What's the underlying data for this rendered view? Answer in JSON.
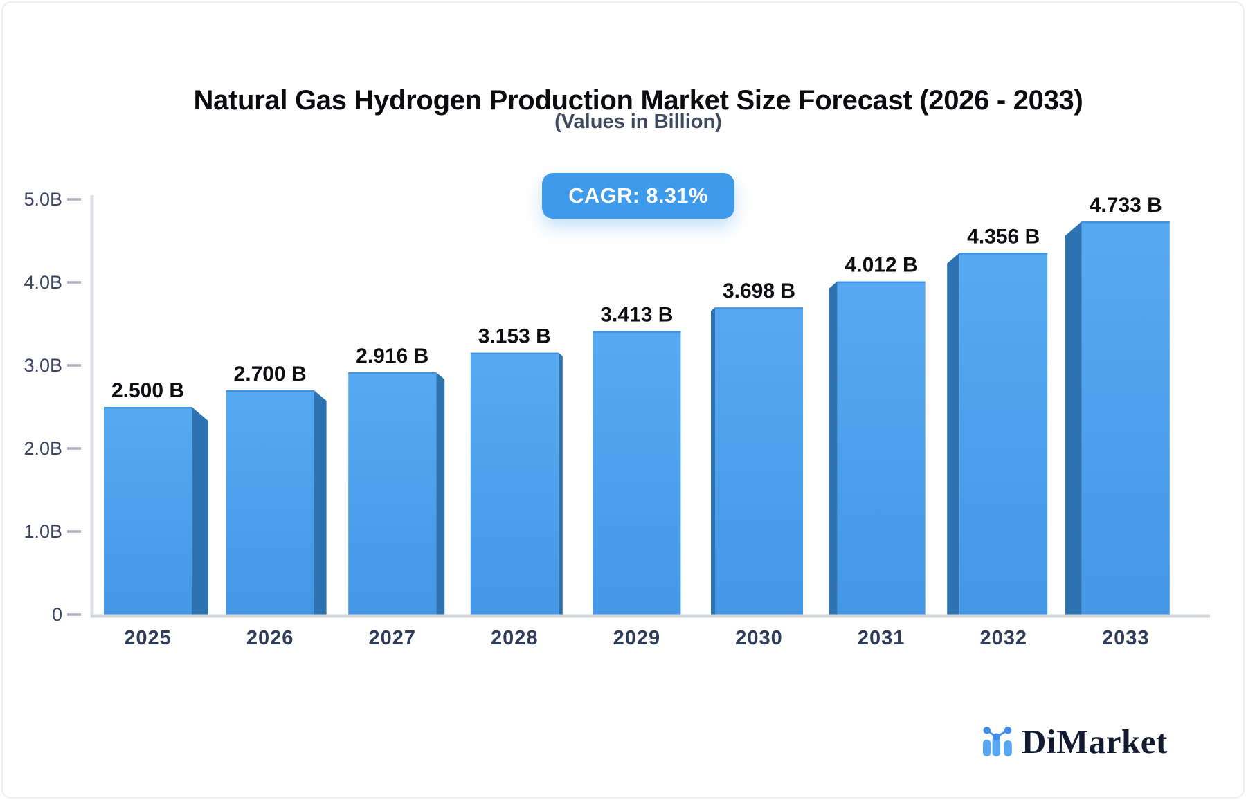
{
  "header": {
    "title": "Natural Gas Hydrogen Production Market Size Forecast (2026 - 2033)",
    "subtitle": "(Values in Billion)"
  },
  "badge": {
    "label": "CAGR: 8.31%"
  },
  "logo": {
    "name": "DiMarket",
    "icon": "mini-bar-line-chart-icon"
  },
  "chart_data": {
    "type": "bar",
    "title": "Natural Gas Hydrogen Production Market Size Forecast (2026 - 2033)",
    "subtitle": "(Values in Billion)",
    "cagr_percent": 8.31,
    "categories": [
      "2025",
      "2026",
      "2027",
      "2028",
      "2029",
      "2030",
      "2031",
      "2032",
      "2033"
    ],
    "values": [
      2.5,
      2.7,
      2.916,
      3.153,
      3.413,
      3.698,
      4.012,
      4.356,
      4.733
    ],
    "value_labels": [
      "2.500 B",
      "2.700 B",
      "2.916 B",
      "3.153 B",
      "3.413 B",
      "3.698 B",
      "4.012 B",
      "4.356 B",
      "4.733 B"
    ],
    "unit": "Billion",
    "xlabel": "",
    "ylabel": "",
    "ylim": [
      0,
      5
    ],
    "yticks": {
      "values": [
        0,
        1,
        2,
        3,
        4,
        5
      ],
      "labels": [
        "0",
        "1.0B",
        "2.0B",
        "3.0B",
        "4.0B",
        "5.0B"
      ]
    },
    "grid": false,
    "legend": null,
    "style": {
      "bar_face_top": "#57a9f1",
      "bar_face_bottom": "#4497e6",
      "bar_face_top_edge": "#3e92df",
      "bar_side": "#2d73b2",
      "axis_line": "#dcdfe6",
      "baseline": "#d2d4dc",
      "tick": "#aab1bc",
      "ytick_label_color": "#3a4663",
      "xtick_label_color": "#2e3c59",
      "value_label_color": "#0d0e12",
      "accent": "#3e9beb"
    }
  }
}
